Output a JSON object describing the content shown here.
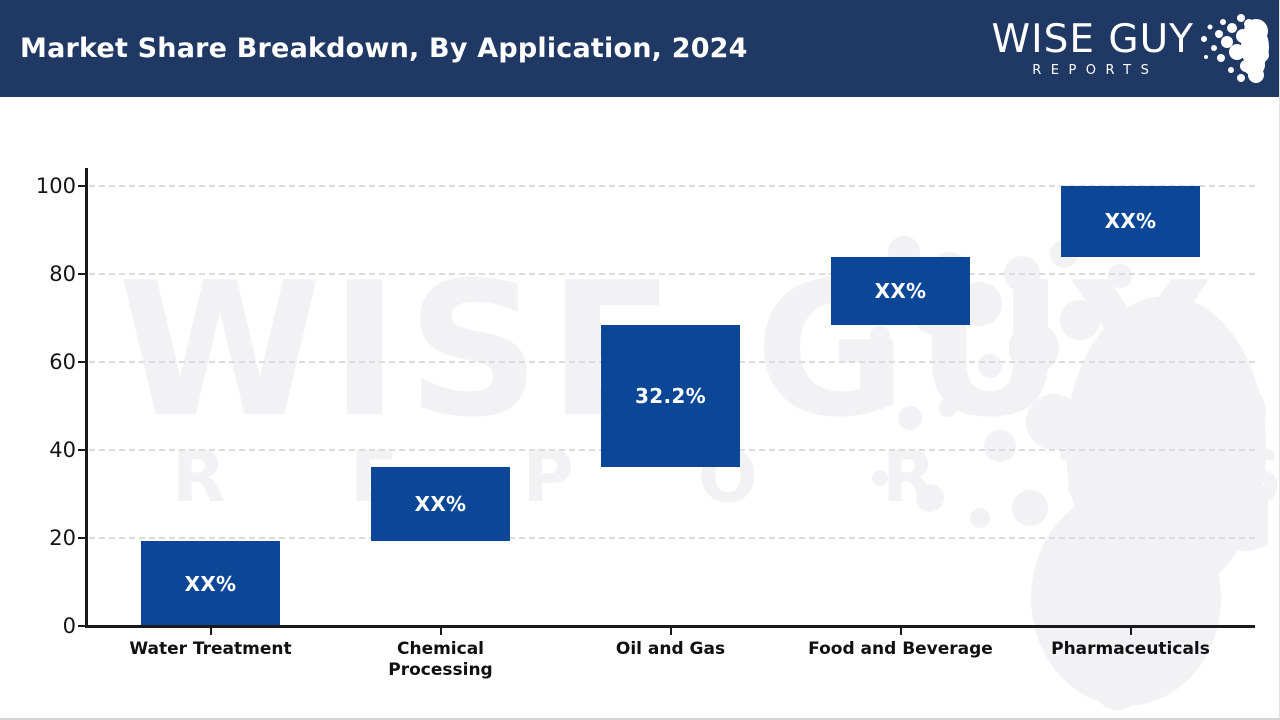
{
  "header": {
    "title": "Market Share Breakdown, By Application, 2024",
    "logo": {
      "line1": "WISE GUY",
      "line2": "REPORTS"
    }
  },
  "watermark": {
    "line1": "WISE GUY",
    "line2": "R E P O R T S"
  },
  "colors": {
    "header_bg": "#1f3864",
    "bar": "#0b4697",
    "bar_label": "#ffffff",
    "axis": "#1a1a1a",
    "gridline": "#dcdcdc",
    "watermark": "#f2f2f4"
  },
  "chart_data": {
    "type": "bar",
    "subtype": "floating-waterfall",
    "title": "Market Share Breakdown, By Application, 2024",
    "xlabel": "",
    "ylabel": "",
    "ylim": [
      0,
      105
    ],
    "yticks": [
      0,
      20,
      40,
      60,
      80,
      100
    ],
    "grid": "horizontal-dashed",
    "legend": "none",
    "categories": [
      "Water Treatment",
      "Chemical Processing",
      "Oil and Gas",
      "Food and Beverage",
      "Pharmaceuticals"
    ],
    "category_label_lines": [
      [
        "Water Treatment"
      ],
      [
        "Chemical",
        "Processing"
      ],
      [
        "Oil and Gas"
      ],
      [
        "Food and Beverage"
      ],
      [
        "Pharmaceuticals"
      ]
    ],
    "series": [
      {
        "category": "Water Treatment",
        "start": 0,
        "end": 19.3,
        "value_label": "XX%"
      },
      {
        "category": "Chemical Processing",
        "start": 19.4,
        "end": 36.1,
        "value_label": "XX%"
      },
      {
        "category": "Oil and Gas",
        "start": 36.1,
        "end": 68.3,
        "value_label": "32.2%"
      },
      {
        "category": "Food and Beverage",
        "start": 68.3,
        "end": 83.9,
        "value_label": "XX%"
      },
      {
        "category": "Pharmaceuticals",
        "start": 83.9,
        "end": 100,
        "value_label": "XX%"
      }
    ]
  }
}
